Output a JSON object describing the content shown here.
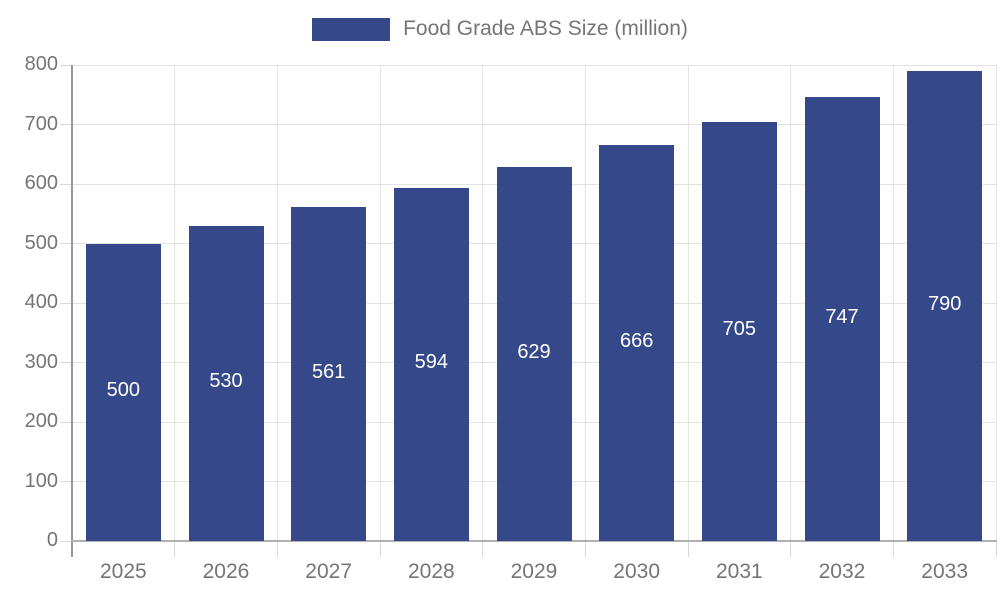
{
  "legend": {
    "label": "Food Grade ABS Size (million)"
  },
  "chart_data": {
    "type": "bar",
    "title": "",
    "xlabel": "",
    "ylabel": "",
    "series_name": "Food Grade ABS Size (million)",
    "categories": [
      "2025",
      "2026",
      "2027",
      "2028",
      "2029",
      "2030",
      "2031",
      "2032",
      "2033"
    ],
    "values": [
      500,
      530,
      561,
      594,
      629,
      666,
      705,
      747,
      790
    ],
    "value_labels": [
      "500",
      "530",
      "561",
      "594",
      "629",
      "666",
      "705",
      "747",
      "790"
    ],
    "ylim": [
      0,
      800
    ],
    "yticks": [
      0,
      100,
      200,
      300,
      400,
      500,
      600,
      700,
      800
    ],
    "grid": true,
    "legend_position": "top-center",
    "value_label_position": "inside-center"
  },
  "colors": {
    "bar": "#35498a",
    "legend_swatch": "#35498a",
    "axis_text": "#757575",
    "legend_text": "#757575",
    "value_label": "#ffffff",
    "gridline": "#e3e3e3",
    "axis_line_left": "#979797",
    "axis_line_bottom": "#b0b0b0",
    "tick": "#d9d9d9",
    "background": "#ffffff"
  }
}
